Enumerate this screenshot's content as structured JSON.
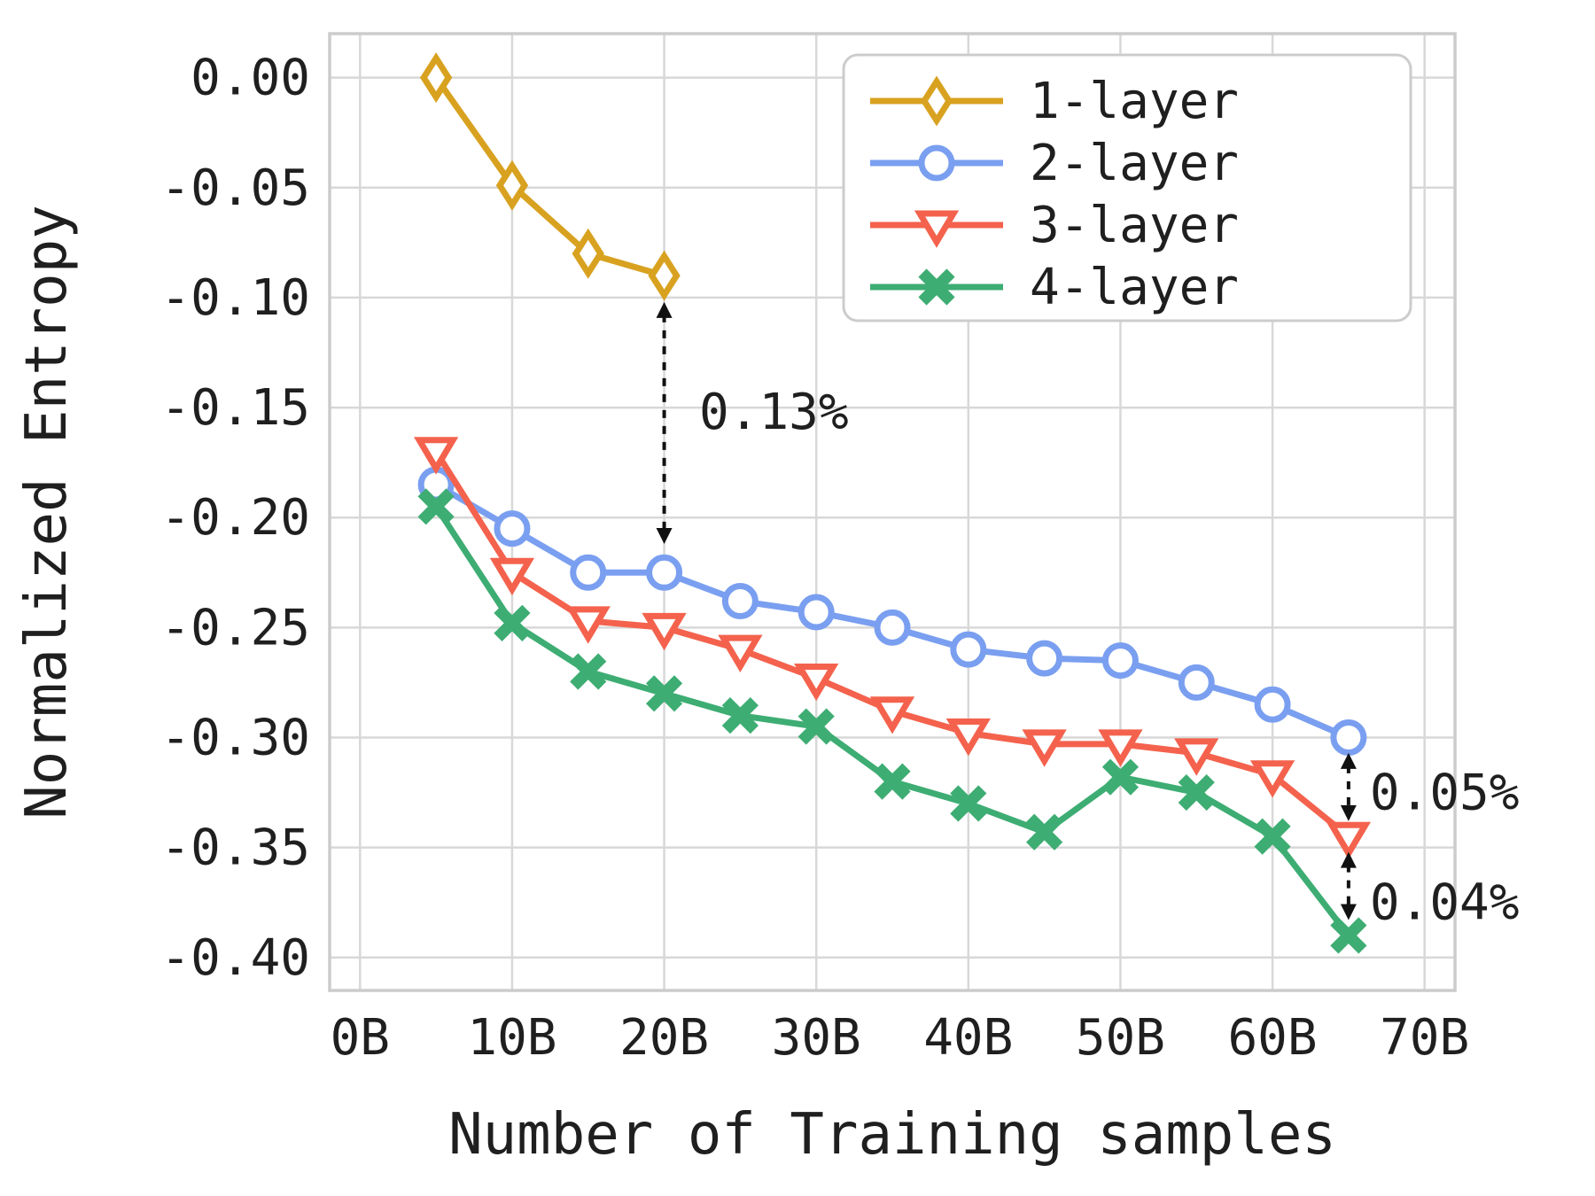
{
  "chart_data": {
    "type": "line",
    "title": "",
    "xlabel": "Number of Training samples",
    "ylabel": "Normalized Entropy",
    "xlim": [
      -2,
      72
    ],
    "ylim": [
      -0.415,
      0.02
    ],
    "grid": true,
    "legend_position": "upper right",
    "x_ticks": [
      0,
      10,
      20,
      30,
      40,
      50,
      60,
      70
    ],
    "x_tick_labels": [
      "0B",
      "10B",
      "20B",
      "30B",
      "40B",
      "50B",
      "60B",
      "70B"
    ],
    "y_ticks": [
      0.0,
      -0.05,
      -0.1,
      -0.15,
      -0.2,
      -0.25,
      -0.3,
      -0.35,
      -0.4
    ],
    "y_tick_labels": [
      "0.00",
      "-0.05",
      "-0.10",
      "-0.15",
      "-0.20",
      "-0.25",
      "-0.30",
      "-0.35",
      "-0.40"
    ],
    "series": [
      {
        "name": "1-layer",
        "color": "#d8a220",
        "marker": "diamond",
        "x": [
          5,
          10,
          15,
          20
        ],
        "y": [
          0.0,
          -0.049,
          -0.08,
          -0.09
        ]
      },
      {
        "name": "2-layer",
        "color": "#7a9ff0",
        "marker": "circle",
        "x": [
          5,
          10,
          15,
          20,
          25,
          30,
          35,
          40,
          45,
          50,
          55,
          60,
          65
        ],
        "y": [
          -0.185,
          -0.205,
          -0.225,
          -0.225,
          -0.238,
          -0.243,
          -0.25,
          -0.26,
          -0.264,
          -0.265,
          -0.275,
          -0.285,
          -0.3
        ]
      },
      {
        "name": "3-layer",
        "color": "#f4624d",
        "marker": "triangle-down",
        "x": [
          5,
          10,
          15,
          20,
          25,
          30,
          35,
          40,
          45,
          50,
          55,
          60,
          65
        ],
        "y": [
          -0.17,
          -0.225,
          -0.247,
          -0.25,
          -0.26,
          -0.273,
          -0.288,
          -0.298,
          -0.303,
          -0.303,
          -0.307,
          -0.317,
          -0.345
        ]
      },
      {
        "name": "4-layer",
        "color": "#3ead73",
        "marker": "x-cross",
        "x": [
          5,
          10,
          15,
          20,
          25,
          30,
          35,
          40,
          45,
          50,
          55,
          60,
          65
        ],
        "y": [
          -0.195,
          -0.248,
          -0.27,
          -0.28,
          -0.29,
          -0.295,
          -0.32,
          -0.33,
          -0.343,
          -0.318,
          -0.325,
          -0.345,
          -0.39
        ]
      }
    ],
    "annotations": [
      {
        "label": "0.13%",
        "x": 20,
        "y_from": -0.102,
        "y_to": -0.212,
        "label_x": 22.3,
        "label_y": -0.152
      },
      {
        "label": "0.05%",
        "x": 65,
        "y_from": -0.307,
        "y_to": -0.338,
        "label_x": 66.4,
        "label_y": -0.325
      },
      {
        "label": "0.04%",
        "x": 65,
        "y_from": -0.352,
        "y_to": -0.383,
        "label_x": 66.4,
        "label_y": -0.375
      }
    ],
    "colors": {
      "grid": "#d8d8d8",
      "frame": "#cccccc",
      "text": "#1f1f1f",
      "annotation_arrow": "#111111",
      "background": "#ffffff",
      "legend_border": "#cccccc"
    }
  }
}
